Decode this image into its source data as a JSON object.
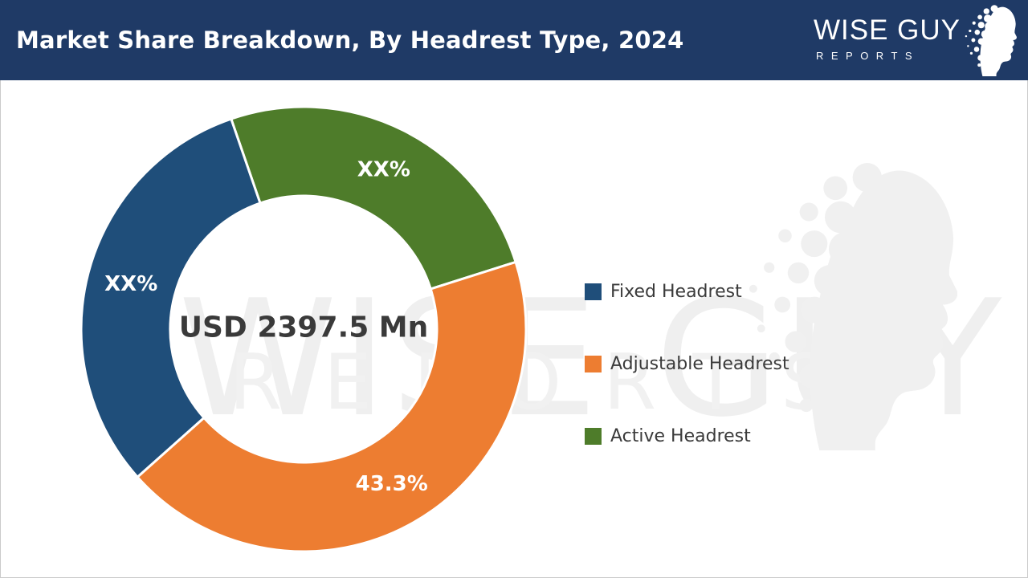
{
  "header": {
    "title": "Market Share Breakdown, By Headrest Type, 2024",
    "bg_color": "#1f3a66",
    "logo": {
      "wordmark": "WISE GUY",
      "subtext": "REPORTS"
    }
  },
  "chart_data": {
    "type": "pie",
    "subtype": "donut",
    "title": "Market Share Breakdown, By Headrest Type, 2024",
    "center_label": "USD 2397.5 Mn",
    "legend_position": "right",
    "start_angle_deg": -19,
    "segments": [
      {
        "name": "Active Headrest",
        "display_label": "XX%",
        "percent": 25.4,
        "color": "#4e7c2a"
      },
      {
        "name": "Adjustable Headrest",
        "display_label": "43.3%",
        "percent": 43.3,
        "color": "#ed7d31"
      },
      {
        "name": "Fixed Headrest",
        "display_label": "XX%",
        "percent": 31.3,
        "color": "#1f4e7a"
      }
    ],
    "legend": [
      {
        "label": "Fixed Headrest",
        "color": "#1f4e7a"
      },
      {
        "label": "Adjustable Headrest",
        "color": "#ed7d31"
      },
      {
        "label": "Active Headrest",
        "color": "#4e7c2a"
      }
    ]
  },
  "watermark": {
    "wordmark": "WISE GUY",
    "subtext": "REPORTS"
  }
}
